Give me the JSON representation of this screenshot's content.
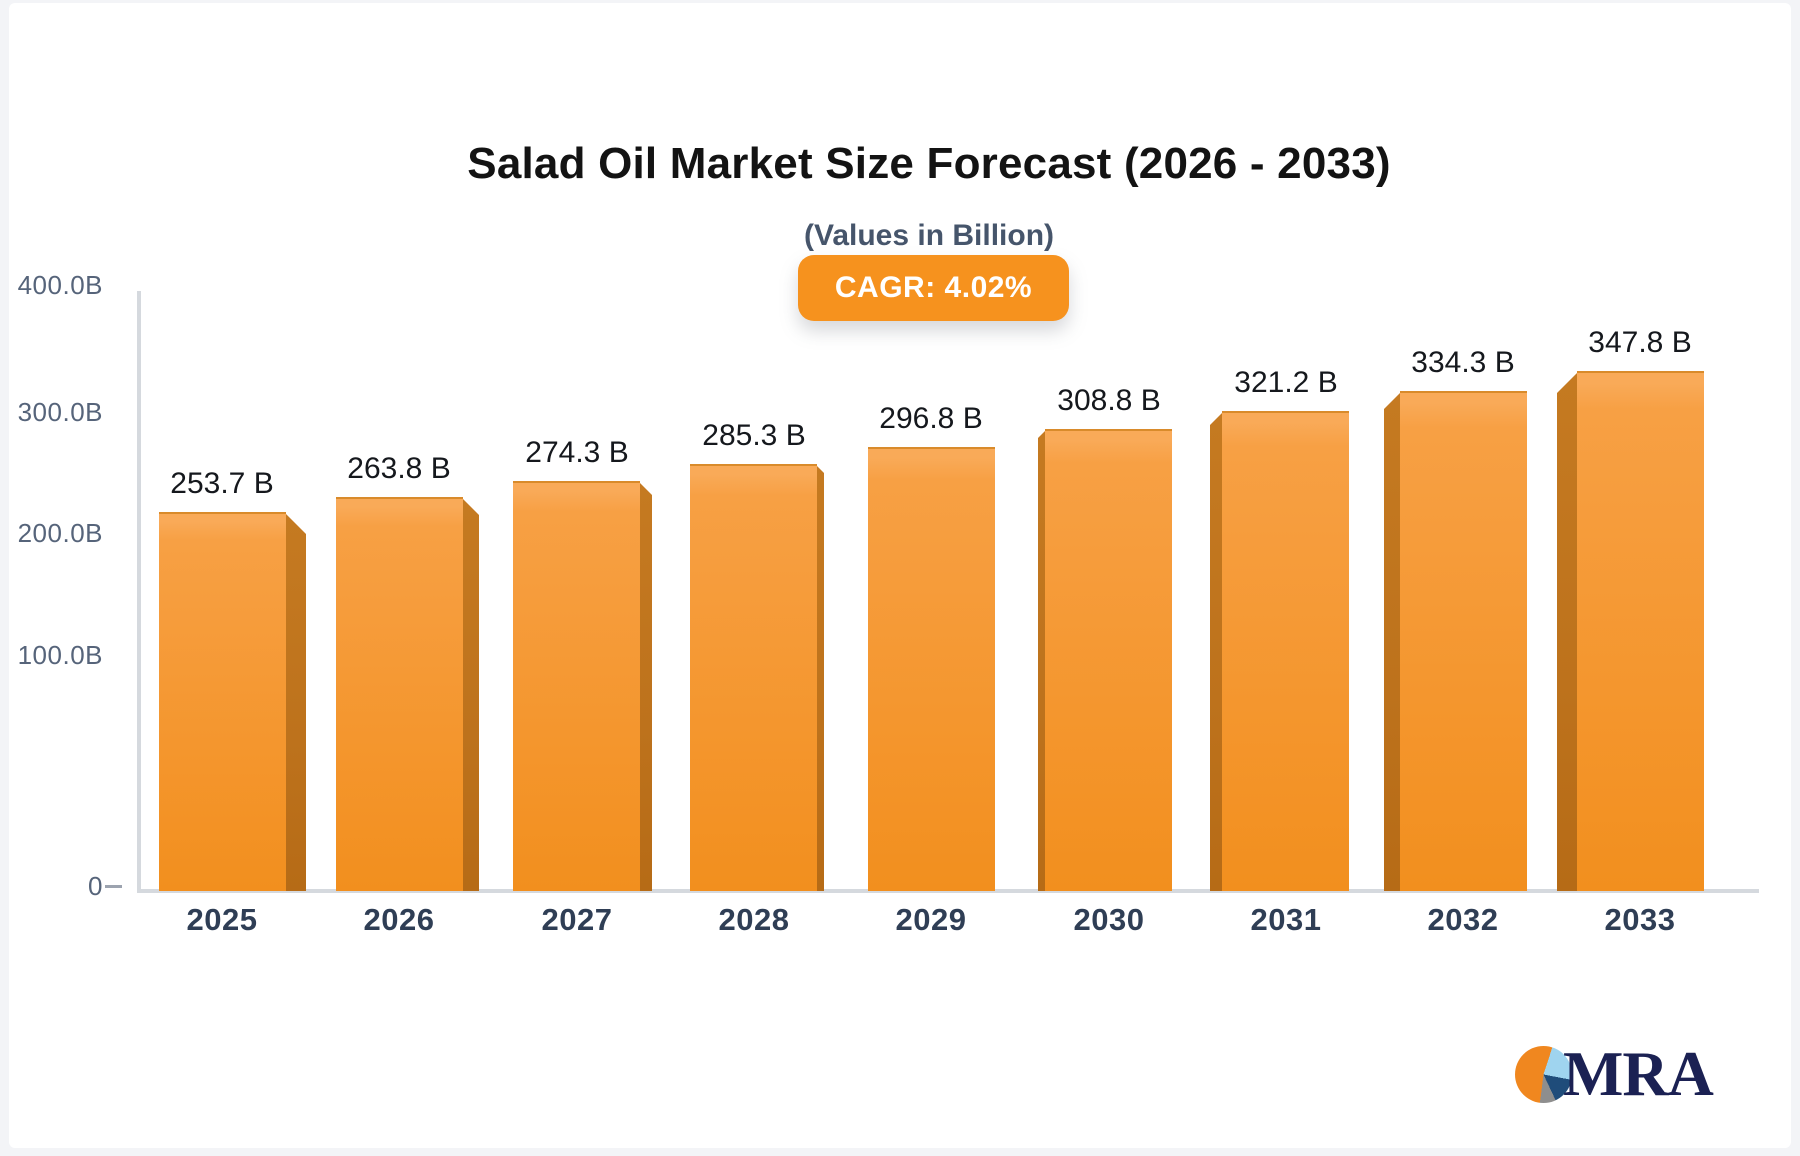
{
  "title": "Salad Oil Market Size Forecast (2026 - 2033)",
  "subtitle": "(Values in Billion)",
  "badge": {
    "label": "CAGR: 4.02%",
    "bg_color": "#f6921e",
    "text_color": "#ffffff"
  },
  "logo": {
    "text": "MRA",
    "icon": "pie-chart-icon",
    "text_color": "#1b2153"
  },
  "chart_data": {
    "type": "bar",
    "title": "Salad Oil Market Size Forecast (2026 - 2033)",
    "subtitle": "(Values in Billion)",
    "cagr": "4.02%",
    "unit": "Billion",
    "categories": [
      "2025",
      "2026",
      "2027",
      "2028",
      "2029",
      "2030",
      "2031",
      "2032",
      "2033"
    ],
    "values": [
      253.7,
      263.8,
      274.3,
      285.3,
      296.8,
      308.8,
      321.2,
      334.3,
      347.8
    ],
    "value_labels": [
      "253.7 B",
      "263.8 B",
      "274.3 B",
      "285.3 B",
      "296.8 B",
      "308.8 B",
      "321.2 B",
      "334.3 B",
      "347.8 B"
    ],
    "y_ticks": [
      "400.0B",
      "300.0B",
      "200.0B",
      "100.0B",
      "0"
    ],
    "ylim": [
      0,
      400
    ],
    "xlabel": "",
    "ylabel": "",
    "grid": false,
    "legend": "none",
    "bar_color": "#f6921e",
    "bar_side_color": "#bd721c",
    "axis_color": "#d5d9de",
    "style": "3d-bars"
  }
}
